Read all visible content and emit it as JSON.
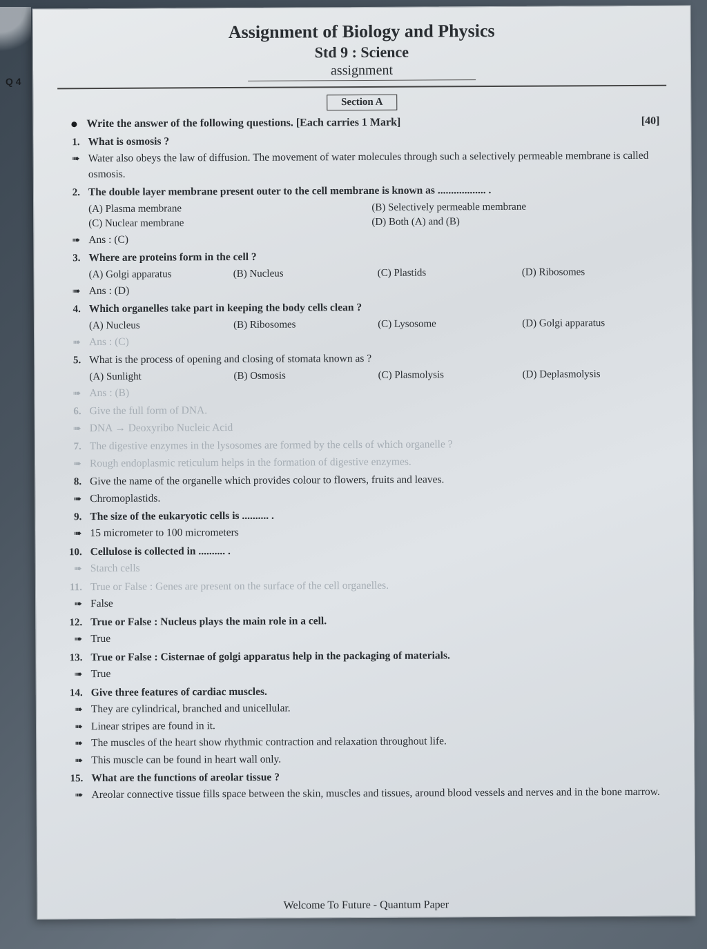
{
  "header": {
    "title": "Assignment of Biology and Physics",
    "subtitle": "Std 9 : Science",
    "label": "assignment"
  },
  "section": {
    "box": "Section A"
  },
  "instruction": {
    "text": "Write the answer of the following questions. [Each carries 1 Mark]",
    "marks": "[40]"
  },
  "q1": {
    "num": "1.",
    "text": "What is osmosis ?",
    "ans": "Water also obeys the law of diffusion. The movement of water molecules through such a selectively permeable membrane is called osmosis."
  },
  "q2": {
    "num": "2.",
    "text": "The double layer membrane present outer to the cell membrane is known as .................. .",
    "a": "(A) Plasma membrane",
    "b": "(B) Selectively permeable membrane",
    "c": "(C) Nuclear membrane",
    "d": "(D) Both (A) and (B)",
    "ans": "Ans : (C)"
  },
  "q3": {
    "num": "3.",
    "text": "Where are proteins form in the cell ?",
    "a": "(A) Golgi apparatus",
    "b": "(B) Nucleus",
    "c": "(C) Plastids",
    "d": "(D) Ribosomes",
    "ans": "Ans : (D)"
  },
  "q4": {
    "num": "4.",
    "text": "Which organelles take part in keeping the body cells clean ?",
    "a": "(A) Nucleus",
    "b": "(B) Ribosomes",
    "c": "(C) Lysosome",
    "d": "(D) Golgi apparatus",
    "ans": "Ans : (C)"
  },
  "q5": {
    "num": "5.",
    "text": "What is the process of opening and closing of stomata known as ?",
    "a": "(A) Sunlight",
    "b": "(B) Osmosis",
    "c": "(C) Plasmolysis",
    "d": "(D) Deplasmolysis",
    "ans": "Ans : (B)"
  },
  "q6": {
    "num": "6.",
    "text": "Give the full form of DNA.",
    "ans": "DNA → Deoxyribo Nucleic Acid"
  },
  "q7": {
    "num": "7.",
    "text": "The digestive enzymes in the lysosomes are formed by the cells of which organelle ?",
    "ans": "Rough endoplasmic reticulum helps in the formation of digestive enzymes."
  },
  "q8": {
    "num": "8.",
    "text": "Give the name of the organelle which provides colour to flowers, fruits and leaves.",
    "ans": "Chromoplastids."
  },
  "q9": {
    "num": "9.",
    "text": "The size of the eukaryotic cells is .......... .",
    "ans": "15 micrometer to 100 micrometers"
  },
  "q10": {
    "num": "10.",
    "text": "Cellulose is collected in .......... .",
    "ans": "Starch cells"
  },
  "q11": {
    "num": "11.",
    "text": "True or False : Genes are present on the surface of the cell organelles.",
    "ans": "False"
  },
  "q12": {
    "num": "12.",
    "text": "True or False : Nucleus plays the main role in a cell.",
    "ans": "True"
  },
  "q13": {
    "num": "13.",
    "text": "True or False : Cisternae of golgi apparatus help in the packaging of materials.",
    "ans": "True"
  },
  "q14": {
    "num": "14.",
    "text": "Give three features of cardiac muscles.",
    "ans1": "They are cylindrical, branched and unicellular.",
    "ans2": "Linear stripes are found in it.",
    "ans3": "The muscles of the heart show rhythmic contraction and relaxation throughout life.",
    "ans4": "This muscle can be found in heart wall only."
  },
  "q15": {
    "num": "15.",
    "text": "What are the functions of areolar tissue ?",
    "ans": "Areolar connective tissue fills space between the skin, muscles and tissues, around blood vessels and nerves and in the bone marrow."
  },
  "footer": "Welcome To Future - Quantum Paper",
  "edge_label": "Q 4"
}
